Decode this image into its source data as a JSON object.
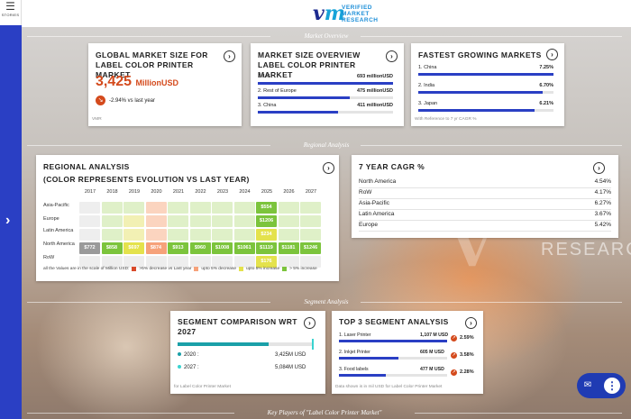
{
  "stories": {
    "label": "STORIES"
  },
  "logo": {
    "line1": "VERIFIED",
    "line2": "MARKET",
    "line3": "RESEARCH",
    "mark": "vm",
    "watermark_word": "RESEARCH",
    "watermark_letters": "V"
  },
  "sections": {
    "market_overview": "Market Overview",
    "regional_analysis": "Regional Analysis",
    "segment_analysis": "Segment Analysis",
    "key_players": "Key Players of \"Label Color Printer Market\""
  },
  "global_size": {
    "title": "GLOBAL MARKET SIZE FOR LABEL COLOR PRINTER MARKET",
    "value": "3,425",
    "unit": "MillionUSD",
    "change": "-2.94% vs last year",
    "source": "VMR"
  },
  "overview_label": {
    "title": "MARKET SIZE OVERVIEW LABEL COLOR PRINTER MARKET",
    "rows": [
      {
        "name": "1. US",
        "value": "693 millionUSD",
        "fill": 1.0
      },
      {
        "name": "2. Rest of Europe",
        "value": "475 millionUSD",
        "fill": 0.68
      },
      {
        "name": "3. China",
        "value": "411 millionUSD",
        "fill": 0.59
      }
    ]
  },
  "fastest": {
    "title": "FASTEST GROWING MARKETS",
    "rows": [
      {
        "name": "1. China",
        "value": "7.25%",
        "fill": 1.0
      },
      {
        "name": "2. India",
        "value": "6.70%",
        "fill": 0.92
      },
      {
        "name": "3. Japan",
        "value": "6.21%",
        "fill": 0.86
      }
    ],
    "footnote": "With Reference to 7 yr CAGR %"
  },
  "regional": {
    "title": "REGIONAL ANALYSIS",
    "subtitle": "(COLOR REPRESENTS EVOLUTION VS LAST YEAR)",
    "years": [
      "2017",
      "2018",
      "2019",
      "2020",
      "2021",
      "2022",
      "2023",
      "2024",
      "2025",
      "2026",
      "2027"
    ],
    "regions": [
      {
        "name": "Asia-Pacific",
        "cells": [
          "",
          "",
          "",
          "",
          "",
          "",
          "",
          "",
          "$554",
          "",
          ""
        ]
      },
      {
        "name": "Europe",
        "cells": [
          "",
          "",
          "",
          "",
          "",
          "",
          "",
          "",
          "$1206",
          "",
          ""
        ]
      },
      {
        "name": "Latin America",
        "cells": [
          "",
          "",
          "",
          "",
          "",
          "",
          "",
          "",
          "$234",
          "",
          ""
        ]
      },
      {
        "name": "North America",
        "cells": [
          "$772",
          "$858",
          "$697",
          "$874",
          "$913",
          "$960",
          "$1008",
          "$1061",
          "$1119",
          "$1181",
          "$1246"
        ]
      },
      {
        "name": "RoW",
        "cells": [
          "",
          "",
          "",
          "",
          "",
          "",
          "",
          "",
          "$176",
          "",
          ""
        ]
      }
    ],
    "legend": {
      "note": "all the Values are in the scale of Million USD:",
      "items": [
        {
          "label": ">5% decrease vs Last year",
          "color": "#d94a2a"
        },
        {
          "label": "upto 5% decrease",
          "color": "#f6a27a"
        },
        {
          "label": "upto 5% increase",
          "color": "#e4e24c"
        },
        {
          "label": "> 5% increase",
          "color": "#7cc43c"
        }
      ]
    }
  },
  "cagr": {
    "title": "7 YEAR CAGR %",
    "rows": [
      {
        "name": "North America",
        "value": "4.54%"
      },
      {
        "name": "RoW",
        "value": "4.17%"
      },
      {
        "name": "Asia-Pacific",
        "value": "6.27%"
      },
      {
        "name": "Latin America",
        "value": "3.67%"
      },
      {
        "name": "Europe",
        "value": "5.42%"
      }
    ]
  },
  "segment_comparison": {
    "title": "SEGMENT COMPARISON WRT 2027",
    "rows": [
      {
        "year": "2020 :",
        "value": "3,425M USD",
        "color": "#1aa0a8"
      },
      {
        "year": "2027 :",
        "value": "5,084M USD",
        "color": "#3ad3d0"
      }
    ],
    "bar_fill": 0.67,
    "footnote": "for Label Color Printer Market"
  },
  "top3": {
    "title": "TOP 3 SEGMENT ANALYSIS",
    "rows": [
      {
        "name": "1. Laser Printer",
        "value": "1,107 M USD",
        "pct": "2.59%",
        "fill": 1.0
      },
      {
        "name": "2. Inkjet Printer",
        "value": "605 M USD",
        "pct": "3.58%",
        "fill": 0.55
      },
      {
        "name": "3. Food labels",
        "value": "477 M USD",
        "pct": "2.28%",
        "fill": 0.43
      }
    ],
    "footnote": "Data shown is in mil USD for Label Color Printer Market"
  },
  "colors": {
    "accent": "#2a3fc4",
    "highlight": "#d44a1c"
  }
}
